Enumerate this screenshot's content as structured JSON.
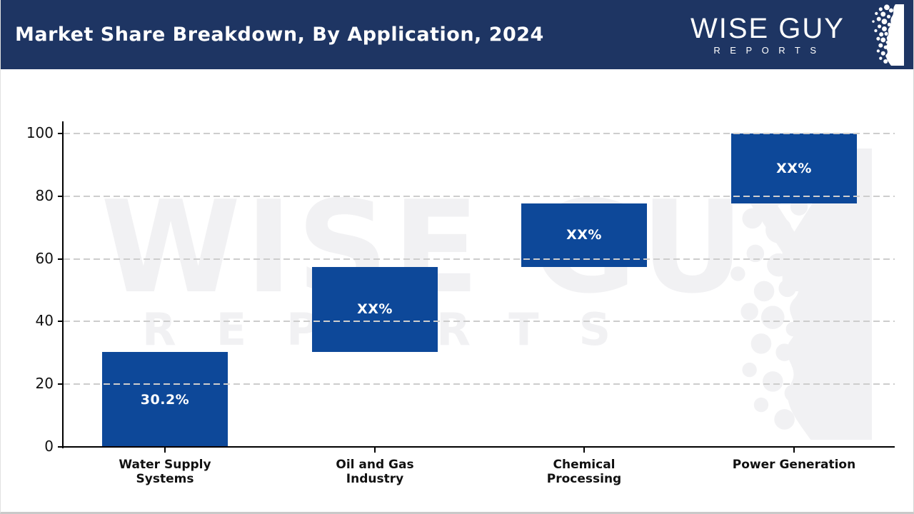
{
  "header": {
    "title": "Market Share Breakdown, By Application, 2024",
    "logo": {
      "line1": "WISE GUY",
      "line2": "REPORTS"
    }
  },
  "watermark": {
    "line1": "WISE GUY",
    "line2": "REPORTS"
  },
  "colors": {
    "header_bg": "#1e3563",
    "title_text": "#ffffff",
    "bar": "#0d4899",
    "bar_label": "#ffffff",
    "grid": "#cdcdcd",
    "axis": "#000000",
    "tick_text": "#111111",
    "watermark": "#f1f1f3",
    "bottom_border": "#c9c9c9"
  },
  "chart_data": {
    "type": "bar",
    "subtype": "waterfall",
    "title": "Market Share Breakdown, By Application, 2024",
    "categories": [
      "Water Supply Systems",
      "Oil and Gas Industry",
      "Chemical Processing",
      "Power Generation"
    ],
    "segments": [
      {
        "category_lines": [
          "Water Supply",
          "Systems"
        ],
        "start": 0,
        "end": 30.2,
        "label": "30.2%"
      },
      {
        "category_lines": [
          "Oil and Gas",
          "Industry"
        ],
        "start": 30.2,
        "end": 57.5,
        "label": "XX%"
      },
      {
        "category_lines": [
          "Chemical",
          "Processing"
        ],
        "start": 57.5,
        "end": 77.6,
        "label": "XX%"
      },
      {
        "category_lines": [
          "Power Generation"
        ],
        "start": 77.6,
        "end": 100,
        "label": "XX%"
      }
    ],
    "ylim": [
      0,
      100
    ],
    "yticks": [
      0,
      20,
      40,
      60,
      80,
      100
    ],
    "grid": "horizontal-dashed-over-bars",
    "legend": "none",
    "xlabel": "",
    "ylabel": ""
  }
}
